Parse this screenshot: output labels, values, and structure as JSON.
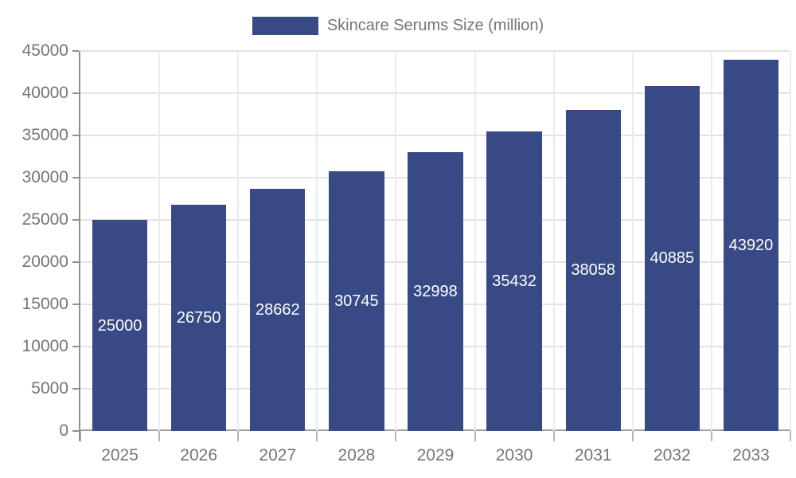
{
  "legend": {
    "label": "Skincare Serums Size (million)"
  },
  "chart_data": {
    "type": "bar",
    "title": "Skincare Serums Size (million)",
    "categories": [
      "2025",
      "2026",
      "2027",
      "2028",
      "2029",
      "2030",
      "2031",
      "2032",
      "2033"
    ],
    "values": [
      25000,
      26750,
      28662,
      30745,
      32998,
      35432,
      38058,
      40885,
      43920
    ],
    "xlabel": "",
    "ylabel": "",
    "ylim": [
      0,
      45000
    ],
    "ytick_step": 5000,
    "ytick_labels": [
      "0",
      "5000",
      "10000",
      "15000",
      "20000",
      "25000",
      "30000",
      "35000",
      "40000",
      "45000"
    ],
    "grid": true,
    "legend_position": "top-center",
    "value_label_position": "center-inside",
    "bar_width_fraction": 0.7
  },
  "colors": {
    "bar": "#374a85",
    "value_label": "#ffffff",
    "tick_label": "#757575",
    "legend_label": "#757575",
    "axis_line": "#8f8f8f",
    "baseline": "#a3a3a3",
    "hgrid": "#e3e3e3",
    "vgrid": "#ebebeb",
    "background": "#ffffff"
  }
}
